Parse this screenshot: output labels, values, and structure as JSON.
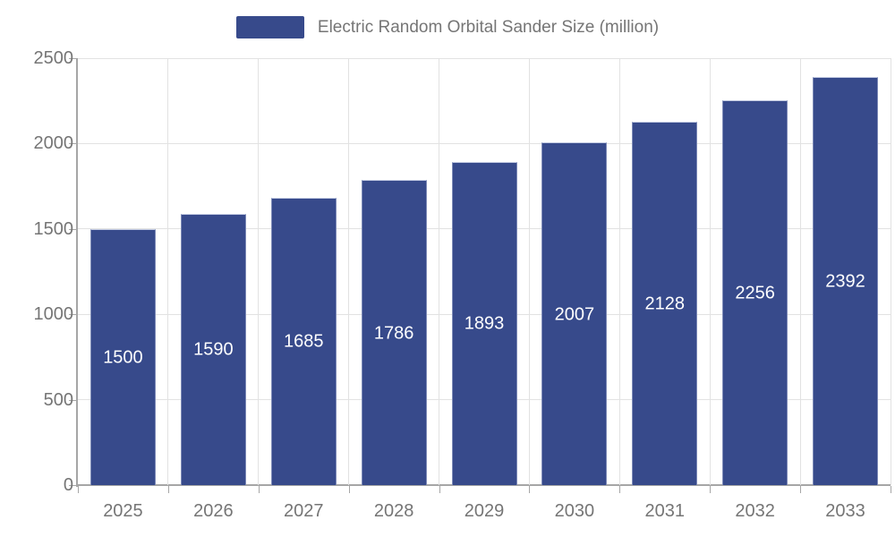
{
  "chart_data": {
    "type": "bar",
    "title": "Electric Random Orbital Sander Size (million)",
    "legend": {
      "label": "Electric Random Orbital Sander Size (million)",
      "position": "top-center"
    },
    "categories": [
      "2025",
      "2026",
      "2027",
      "2028",
      "2029",
      "2030",
      "2031",
      "2032",
      "2033"
    ],
    "series": [
      {
        "name": "Electric Random Orbital Sander Size (million)",
        "values": [
          1500,
          1590,
          1685,
          1786,
          1893,
          2007,
          2128,
          2256,
          2392
        ]
      }
    ],
    "xlabel": "",
    "ylabel": "",
    "ylim": [
      0,
      2500
    ],
    "yticks": [
      0,
      500,
      1000,
      1500,
      2000,
      2500
    ],
    "grid": true,
    "value_label_position": "inside-center",
    "colors": {
      "bar": "#374a8b",
      "bar_edge": "#9aa5cc",
      "grid_line": "#e2e2e2",
      "axis_line": "#a6a6a6",
      "tick_label": "#757575",
      "value_label": "#ffffff",
      "background": "#ffffff"
    }
  }
}
